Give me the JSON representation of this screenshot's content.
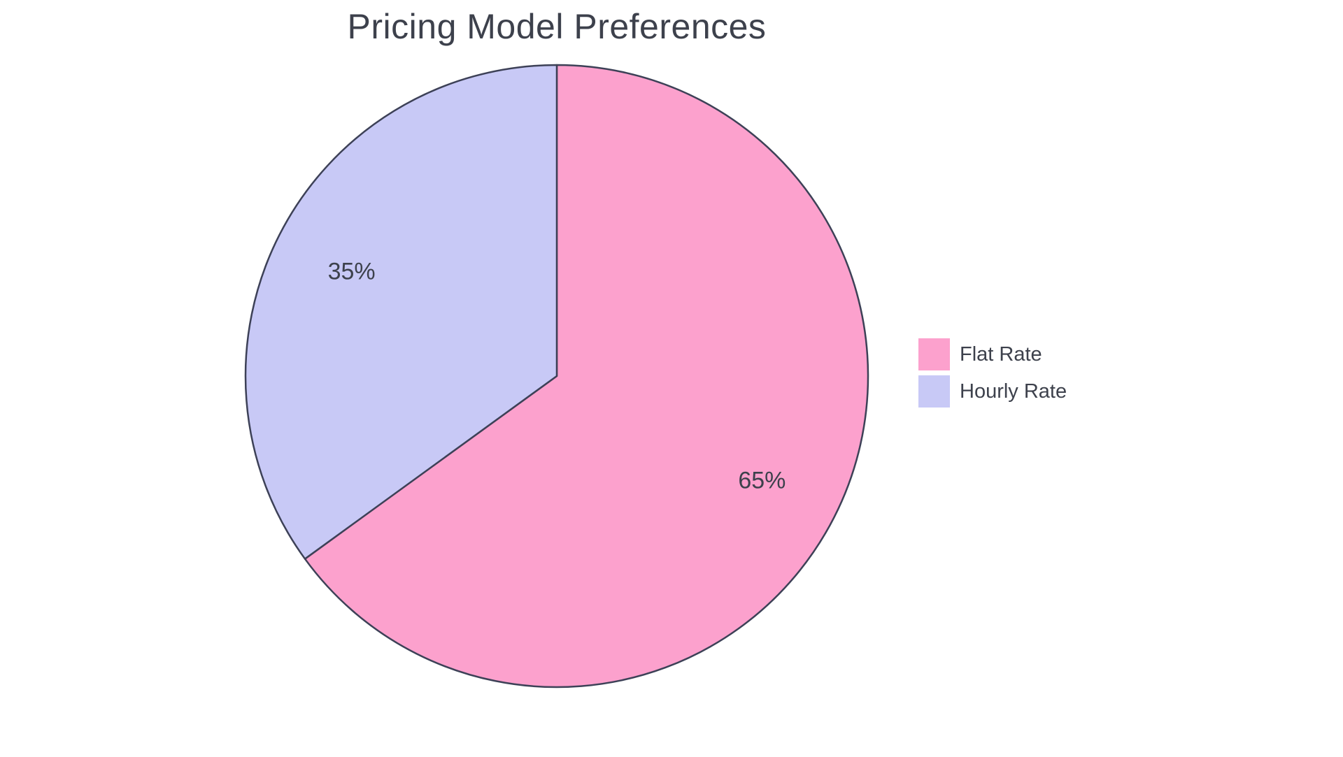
{
  "chart_data": {
    "type": "pie",
    "title": "Pricing Model Preferences",
    "slices": [
      {
        "label": "Flat Rate",
        "value": 65,
        "pct_label": "65%",
        "color": "#FCA1CD"
      },
      {
        "label": "Hourly Rate",
        "value": 35,
        "pct_label": "35%",
        "color": "#C8C9F6"
      }
    ],
    "start_angle": "12-oclock",
    "direction": "clockwise",
    "legend_position": "middle-right",
    "background": "#FFFFFF",
    "stroke_color": "#3D4157",
    "stroke_width": 2.5,
    "label_color": "#3D414C",
    "label_radius_ratio": 0.74
  }
}
